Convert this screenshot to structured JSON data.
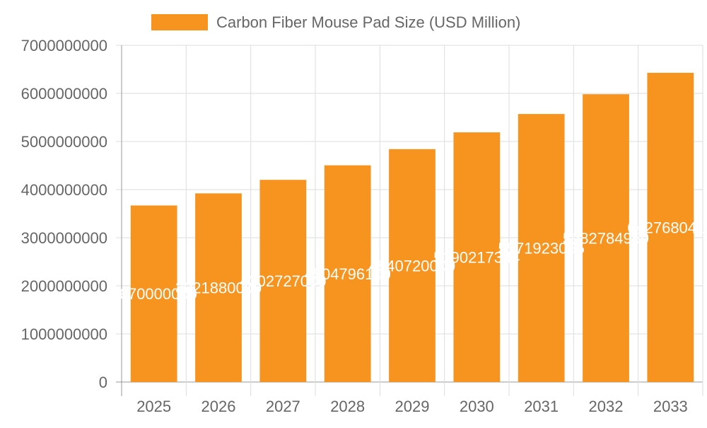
{
  "chart_data": {
    "type": "bar",
    "categories": [
      "2025",
      "2026",
      "2027",
      "2028",
      "2029",
      "2030",
      "2031",
      "2032",
      "2033"
    ],
    "series": [
      {
        "name": "Carbon Fiber Mouse Pad Size (USD Million)",
        "values": [
          3670000000,
          3921880000,
          4202727000,
          4504796100,
          4840720000,
          5190217344,
          5571923065,
          5982784959,
          6427680412
        ],
        "color": "#f79420"
      }
    ],
    "ylim": [
      0,
      7000000000
    ],
    "yticks": [
      "0",
      "1000000000",
      "2000000000",
      "3000000000",
      "4000000000",
      "5000000000",
      "6000000000",
      "7000000000"
    ],
    "grid": true,
    "legend": "top",
    "data_labels": true
  }
}
